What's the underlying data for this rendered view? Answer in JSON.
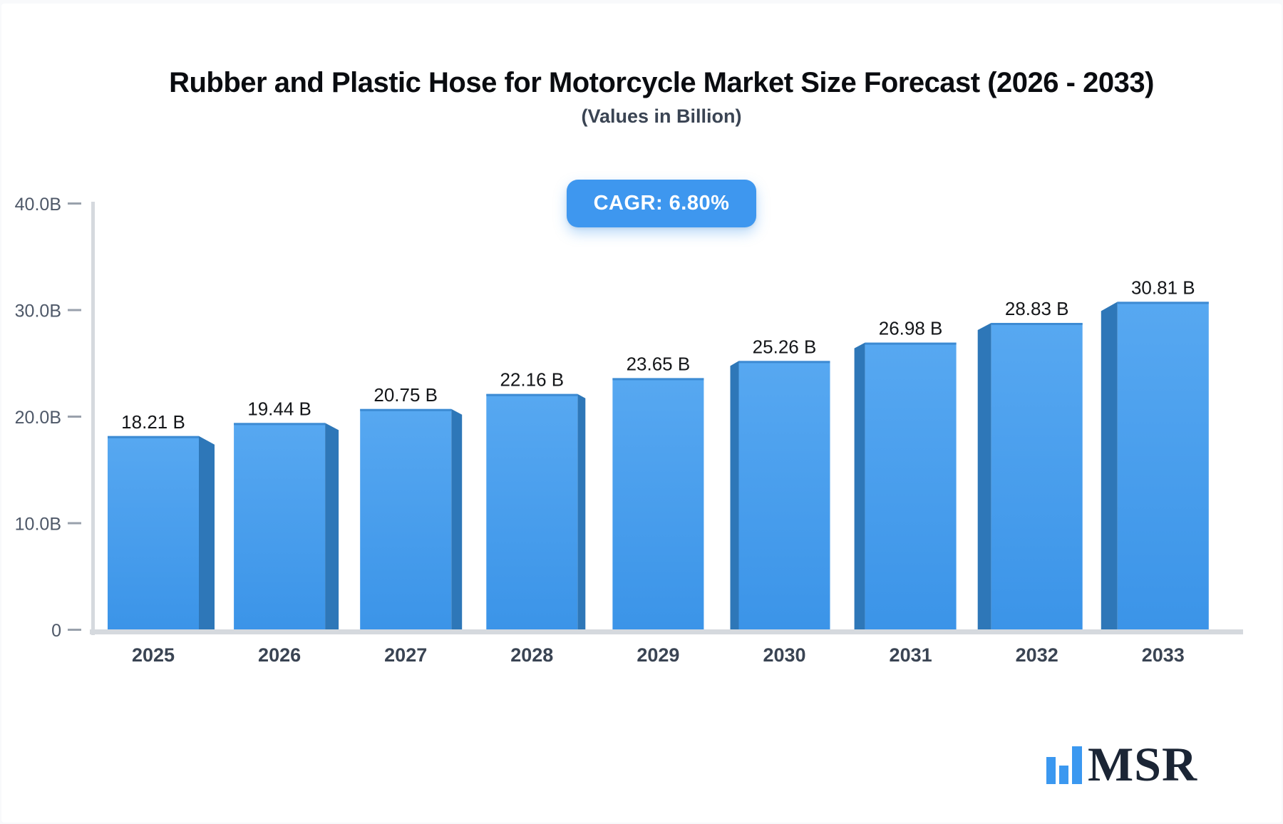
{
  "header": {
    "title": "Rubber and Plastic Hose for Motorcycle Market Size Forecast (2026 - 2033)",
    "subtitle": "(Values in Billion)"
  },
  "badge": {
    "label": "CAGR: 6.80%"
  },
  "chart_data": {
    "type": "bar",
    "title": "Rubber and Plastic Hose for Motorcycle Market Size Forecast (2026 - 2033)",
    "subtitle": "(Values in Billion)",
    "cagr_label": "CAGR: 6.80%",
    "categories": [
      "2025",
      "2026",
      "2027",
      "2028",
      "2029",
      "2030",
      "2031",
      "2032",
      "2033"
    ],
    "values": [
      18.21,
      19.44,
      20.75,
      22.16,
      23.65,
      25.26,
      26.98,
      28.83,
      30.81
    ],
    "value_labels": [
      "18.21 B",
      "19.44 B",
      "20.75 B",
      "22.16 B",
      "23.65 B",
      "25.26 B",
      "26.98 B",
      "28.83 B",
      "30.81 B"
    ],
    "xlabel": "",
    "ylabel": "",
    "ylim": [
      0,
      40
    ],
    "y_tick_values": [
      40,
      30,
      20,
      10,
      0
    ],
    "y_tick_labels": [
      "40.0B",
      "30.0B",
      "20.0B",
      "10.0B",
      "0"
    ],
    "grid": false,
    "legend": "none",
    "style": "3d-column",
    "colors": {
      "bar_face_top": "#57a8f1",
      "bar_face_bottom": "#3b94e8",
      "bar_top_edge": "#3d8bd3",
      "bar_side": "#2e77b8",
      "axis_line": "#d5d9de",
      "tick_mark": "#99a1ac",
      "y_tick_text": "#4e5868",
      "x_tick_text": "#3a4453",
      "value_label_text": "#141619"
    }
  },
  "logo": {
    "text": "MSR",
    "icon_color": "#3b98f0"
  }
}
